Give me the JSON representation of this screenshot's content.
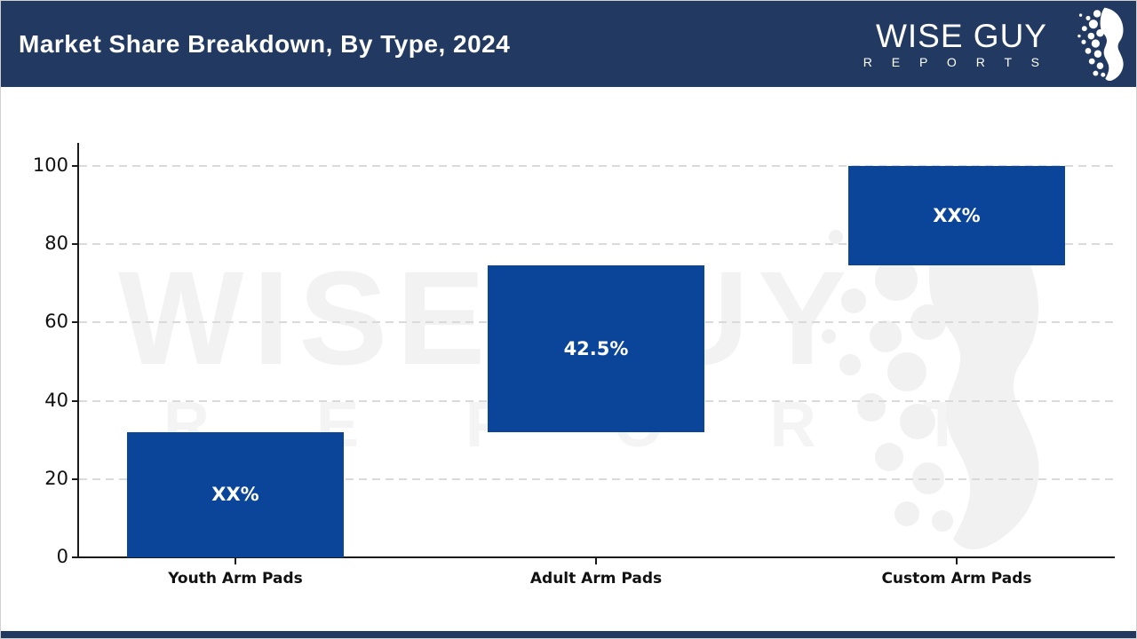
{
  "header": {
    "title": "Market Share Breakdown, By Type, 2024",
    "bg_color": "#223A62",
    "logo": {
      "name": "WISE GUY",
      "sub": "R E P O R T S"
    }
  },
  "watermark": {
    "main": "WISE GUY",
    "sub": "R E P O R T S"
  },
  "chart_data": {
    "type": "bar",
    "variant": "waterfall",
    "title": "Market Share Breakdown, By Type, 2024",
    "categories": [
      "Youth Arm Pads",
      "Adult Arm Pads",
      "Custom Arm Pads"
    ],
    "series": [
      {
        "name": "Market Share %",
        "segments": [
          {
            "category": "Youth Arm Pads",
            "start": 0,
            "end": 32,
            "label": "XX%"
          },
          {
            "category": "Adult Arm Pads",
            "start": 32,
            "end": 74.5,
            "label": "42.5%"
          },
          {
            "category": "Custom Arm Pads",
            "start": 74.5,
            "end": 100,
            "label": "XX%"
          }
        ]
      }
    ],
    "yticks": [
      0,
      20,
      40,
      60,
      80,
      100
    ],
    "ylim": [
      0,
      106
    ],
    "xlabel": "",
    "ylabel": "",
    "grid": {
      "show": true,
      "style": "dashed",
      "color": "#dadada"
    },
    "legend": "none",
    "bar_color": "#0B4599",
    "bar_label_color": "#FFFFFF",
    "axis_color": "#1a1a1a"
  },
  "footer": {
    "bg_color": "#223A62"
  }
}
